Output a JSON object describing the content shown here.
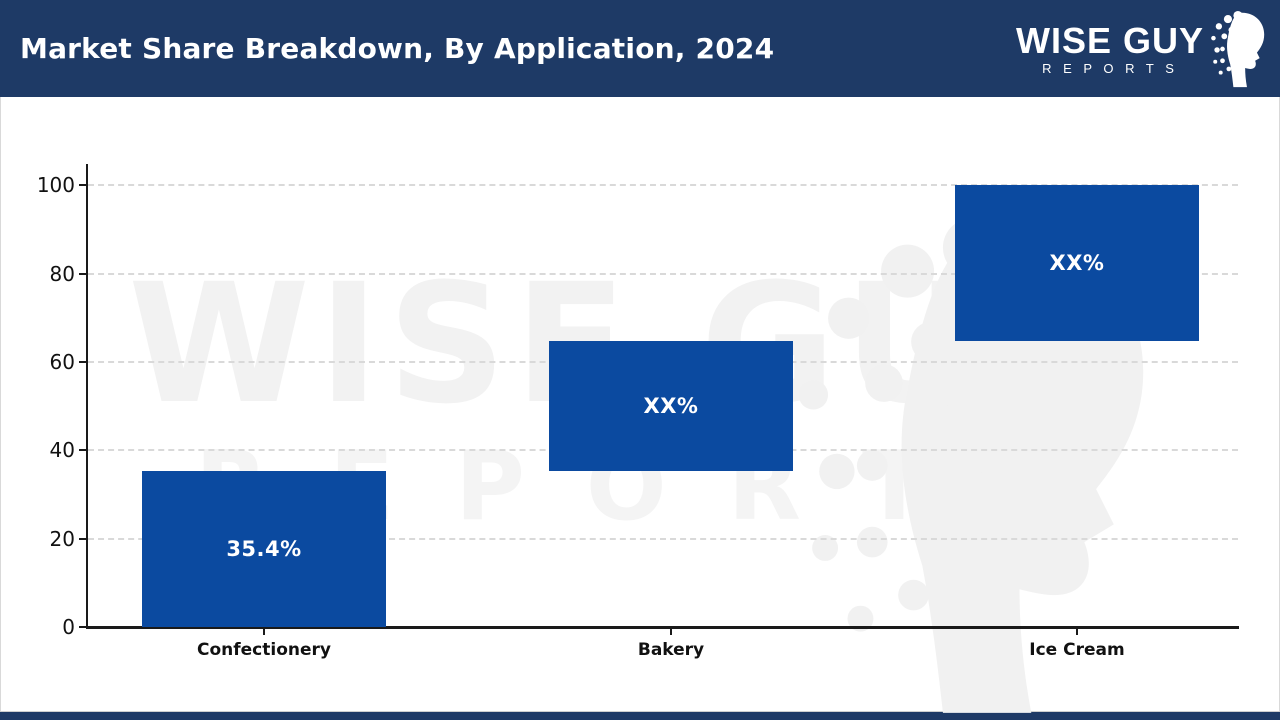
{
  "header": {
    "title": "Market Share Breakdown, By Application, 2024",
    "logo": {
      "line1": "WISE GUY",
      "line2": "R E P O R T S",
      "head_icon": "head-profile-dots-icon"
    }
  },
  "watermark": {
    "line1": "WISE GUY",
    "line2": "R E P O R T S",
    "head_icon": "head-profile-dots-icon"
  },
  "colors": {
    "header_bg": "#1e3a66",
    "bar_blue": "#0b4aa0",
    "grid_gray": "#d9d9d9",
    "watermark_gray": "#f1f1f1",
    "axis_black": "#1a1a1a"
  },
  "chart_data": {
    "type": "bar",
    "subtype": "waterfall",
    "title": "Market Share Breakdown, By Application, 2024",
    "categories": [
      "Confectionery",
      "Bakery",
      "Ice Cream"
    ],
    "segments": [
      {
        "category": "Confectionery",
        "start": 0,
        "end": 35.4,
        "label": "35.4%"
      },
      {
        "category": "Bakery",
        "start": 35.4,
        "end": 64.8,
        "label": "XX%"
      },
      {
        "category": "Ice Cream",
        "start": 64.8,
        "end": 100,
        "label": "XX%"
      }
    ],
    "yticks": [
      0,
      20,
      40,
      60,
      80,
      100
    ],
    "ylim": [
      0,
      105
    ],
    "xlabel": "",
    "ylabel": "",
    "bar_color": "#0b4aa0",
    "grid": "horizontal-dashed",
    "legend": "none"
  }
}
